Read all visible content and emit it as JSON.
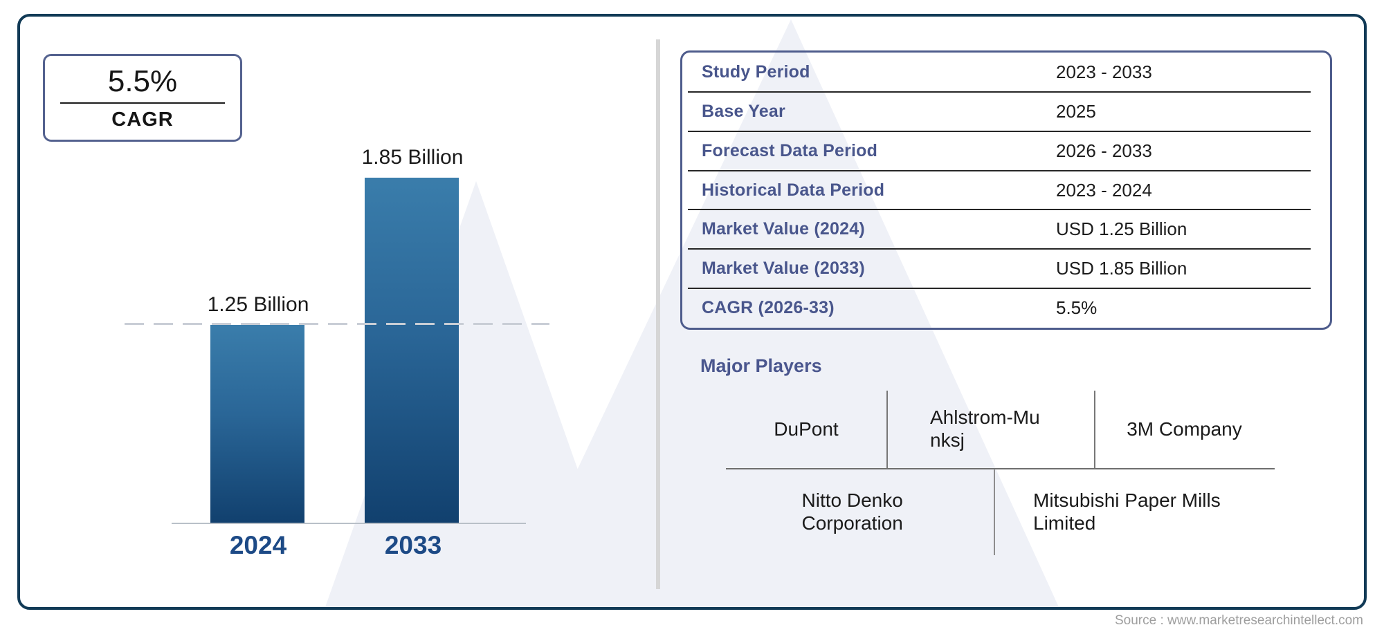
{
  "cagr_box": {
    "value": "5.5%",
    "label": "CAGR"
  },
  "chart_data": {
    "type": "bar",
    "categories": [
      "2024",
      "2033"
    ],
    "values": [
      1.25,
      1.85
    ],
    "unit": "USD Billion",
    "bar_labels": [
      "1.25 Billion",
      "1.85 Billion"
    ],
    "title": "",
    "xlabel": "",
    "ylabel": "",
    "ylim": [
      0,
      2
    ],
    "reference_line": {
      "value": 1.25,
      "style": "dashed"
    },
    "legend": "none",
    "grid": "off"
  },
  "info_table": {
    "rows": [
      {
        "label": "Study Period",
        "value": "2023 - 2033"
      },
      {
        "label": "Base Year",
        "value": "2025"
      },
      {
        "label": "Forecast Data Period",
        "value": "2026 - 2033"
      },
      {
        "label": "Historical Data Period",
        "value": "2023 - 2024"
      },
      {
        "label": "Market Value (2024)",
        "value": "USD 1.25 Billion"
      },
      {
        "label": "Market Value (2033)",
        "value": "USD 1.85 Billion"
      },
      {
        "label": "CAGR (2026-33)",
        "value": "5.5%"
      }
    ]
  },
  "major_players": {
    "title": "Major Players",
    "top_row": [
      "DuPont",
      "Ahlstrom-Munksj",
      "3M Company"
    ],
    "bottom_row": [
      "Nitto Denko Corporation",
      "Mitsubishi Paper Mills Limited"
    ]
  },
  "footer": {
    "source": "Source : www.marketresearchintellect.com"
  },
  "colors": {
    "frame_border": "#113a56",
    "accent_slate": "#4e5c8c",
    "bar_gradient_top": "#3a7dab",
    "bar_gradient_bottom": "#11406e",
    "year_label": "#1d4a86",
    "watermark": "#eff1f7",
    "source_text": "#9e9e9e"
  }
}
